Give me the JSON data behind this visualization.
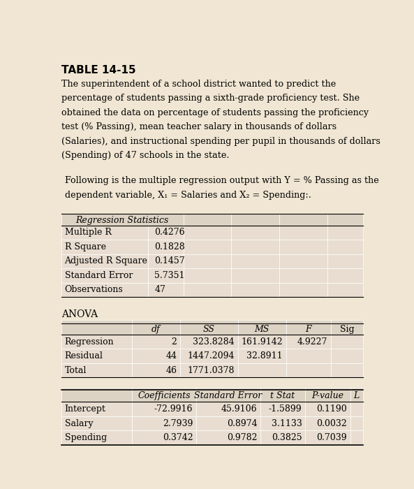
{
  "title": "TABLE 14-15",
  "description_lines": [
    "The superintendent of a school district wanted to predict the",
    "percentage of students passing a sixth-grade proficiency test. She",
    "obtained the data on percentage of students passing the proficiency",
    "test (% Passing), mean teacher salary in thousands of dollars",
    "(Salaries), and instructional spending per pupil in thousands of dollars",
    "(Spending) of 47 schools in the state."
  ],
  "following_lines": [
    "Following is the multiple regression output with Y = % Passing as the",
    "dependent variable, X₁ = Salaries and X₂ = Spending:."
  ],
  "reg_stats_header": "Regression Statistics",
  "reg_stats_rows": [
    [
      "Multiple R",
      "0.4276"
    ],
    [
      "R Square",
      "0.1828"
    ],
    [
      "Adjusted R Square",
      "0.1457"
    ],
    [
      "Standard Error",
      "5.7351"
    ],
    [
      "Observations",
      "47"
    ]
  ],
  "anova_header": "ANOVA",
  "anova_col_headers": [
    "",
    "df",
    "SS",
    "MS",
    "F",
    "Sig"
  ],
  "anova_rows": [
    [
      "Regression",
      "2",
      "323.8284",
      "161.9142",
      "4.9227",
      ""
    ],
    [
      "Residual",
      "44",
      "1447.2094",
      "32.8911",
      "",
      ""
    ],
    [
      "Total",
      "46",
      "1771.0378",
      "",
      "",
      ""
    ]
  ],
  "coeff_col_headers": [
    "",
    "Coefficients",
    "Standard Error",
    "t Stat",
    "P-value",
    "L"
  ],
  "coeff_rows": [
    [
      "Intercept",
      "-72.9916",
      "45.9106",
      "-1.5899",
      "0.1190",
      ""
    ],
    [
      "Salary",
      "2.7939",
      "0.8974",
      "3.1133",
      "0.0032",
      ""
    ],
    [
      "Spending",
      "0.3742",
      "0.9782",
      "0.3825",
      "0.7039",
      ""
    ]
  ],
  "bg_color": "#f0e6d3",
  "table_bg": "#e8ddd0",
  "table_bg2": "#ddd3c4"
}
